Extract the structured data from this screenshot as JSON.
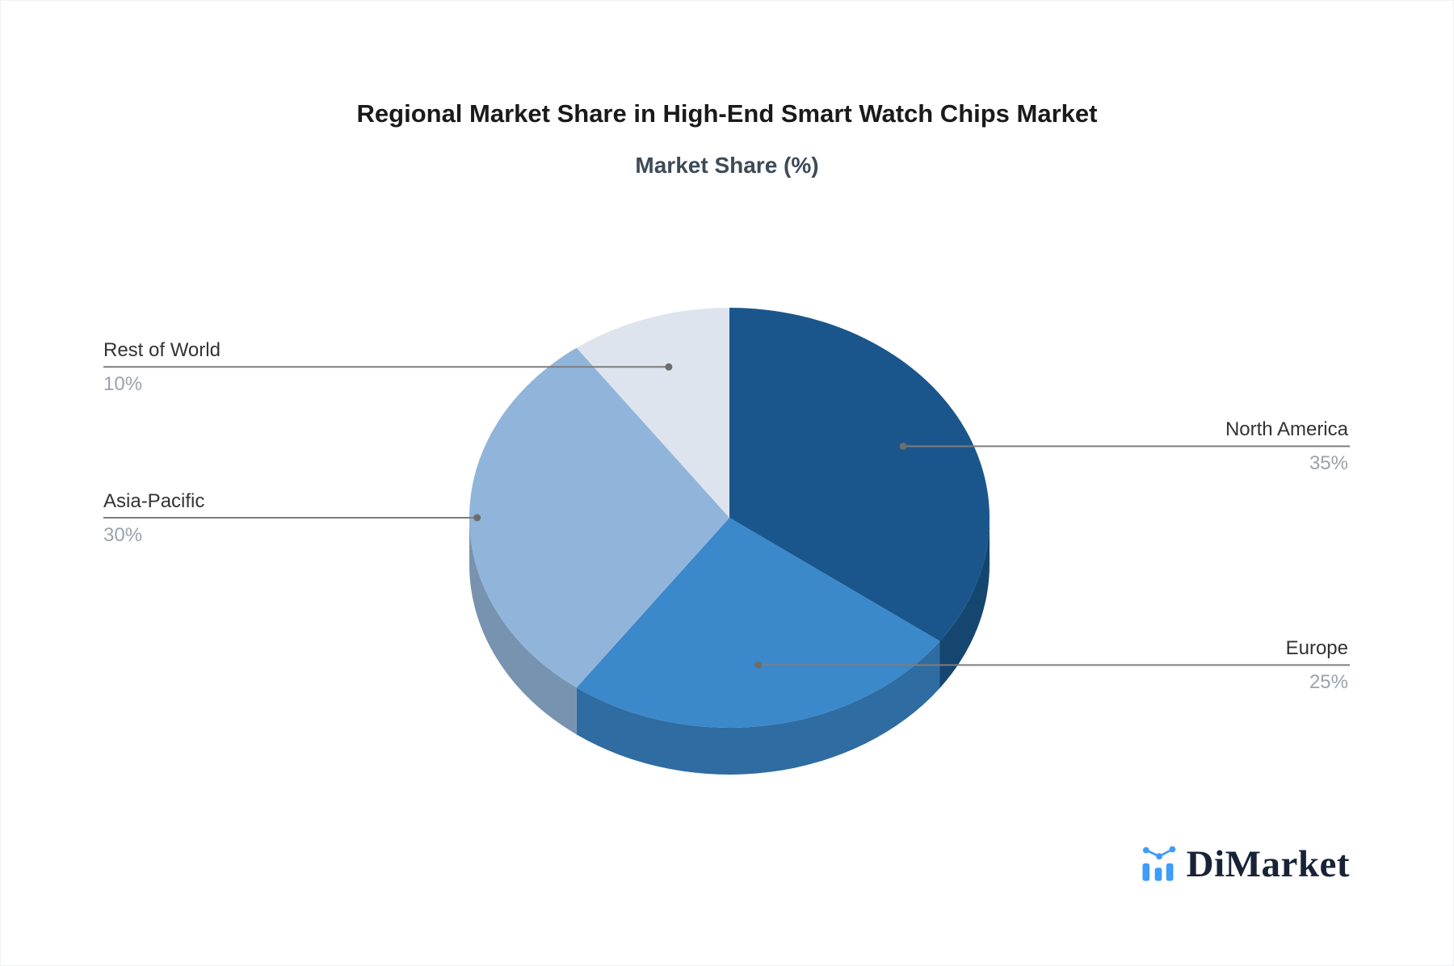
{
  "header": {
    "title": "Regional Market Share in High-End Smart Watch Chips Market",
    "subtitle": "Market Share (%)"
  },
  "chart_data": {
    "type": "pie",
    "title": "Regional Market Share in High-End Smart Watch Chips Market",
    "subtitle": "Market Share (%)",
    "unit": "%",
    "start_angle_deg": 0,
    "direction": "clockwise",
    "effect": "3d",
    "legend_position": "none",
    "categories": [
      "North America",
      "Europe",
      "Asia-Pacific",
      "Rest of World"
    ],
    "values": [
      35,
      25,
      30,
      10
    ],
    "slices": [
      {
        "label": "North America",
        "value": 35,
        "display_value": "35%",
        "color": "#1A568C",
        "side_color": "#144670",
        "callout_side": "right"
      },
      {
        "label": "Europe",
        "value": 25,
        "display_value": "25%",
        "color": "#3B88CB",
        "side_color": "#2F6CA2",
        "callout_side": "right"
      },
      {
        "label": "Asia-Pacific",
        "value": 30,
        "display_value": "30%",
        "color": "#91B5DA",
        "side_color": "#7793AF",
        "callout_side": "left"
      },
      {
        "label": "Rest of World",
        "value": 10,
        "display_value": "10%",
        "color": "#DDE4EE",
        "side_color": "#B1BDD0",
        "callout_side": "left"
      }
    ],
    "style": {
      "label_color": "#333333",
      "value_color": "#9aa2ab",
      "leader_line_color": "#7d7d7d",
      "leader_dot_color": "#6d6d6d",
      "background": "#ffffff"
    }
  },
  "logo": {
    "text": "DiMarket",
    "icon": "combo-chart-icon",
    "text_color": "#182338",
    "icon_color": "#3F9CF7"
  }
}
